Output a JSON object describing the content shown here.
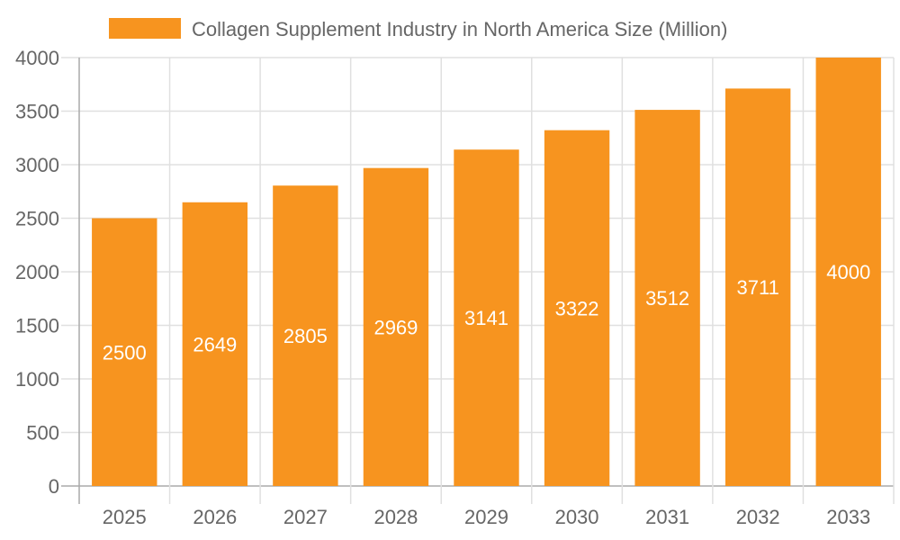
{
  "chart_data": {
    "type": "bar",
    "title": "",
    "xlabel": "",
    "ylabel": "",
    "categories": [
      "2025",
      "2026",
      "2027",
      "2028",
      "2029",
      "2030",
      "2031",
      "2032",
      "2033"
    ],
    "series": [
      {
        "name": "Collagen Supplement Industry in North America Size (Million)",
        "values": [
          2500,
          2649,
          2805,
          2969,
          3141,
          3322,
          3512,
          3711,
          4000
        ]
      }
    ],
    "ylim": [
      0,
      4000
    ],
    "yticks": [
      0,
      500,
      1000,
      1500,
      2000,
      2500,
      3000,
      3500,
      4000
    ],
    "grid": true,
    "legend": "top",
    "data_labels": true,
    "colors": {
      "bar": "#f7941f",
      "grid": "#e0e0e0",
      "axis": "#aaaaaa",
      "text": "#666666",
      "label": "#ffffff"
    }
  }
}
